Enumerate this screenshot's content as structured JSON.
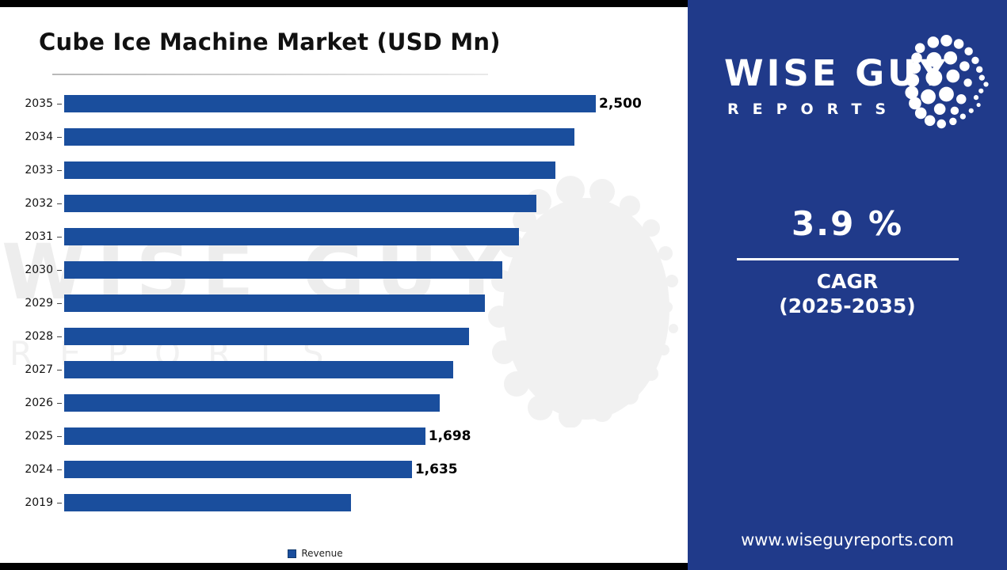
{
  "title": "Cube Ice Machine Market (USD Mn)",
  "watermark": {
    "line1": "WISE GUY",
    "line2": "REPORTS"
  },
  "legend": {
    "label": "Revenue"
  },
  "panel": {
    "logo_line1": "WISE GUY",
    "logo_line2": "REPORTS",
    "cagr_value": "3.9 %",
    "cagr_title": "CAGR",
    "cagr_range": "(2025-2035)",
    "website": "www.wiseguyreports.com",
    "bg_color": "#203a8a"
  },
  "chart_data": {
    "type": "bar",
    "orientation": "horizontal",
    "title": "Cube Ice Machine Market (USD Mn)",
    "xlabel": "",
    "ylabel": "",
    "xlim": [
      0,
      2500
    ],
    "grid": false,
    "legend_position": "bottom",
    "bar_color": "#1a4e9d",
    "categories": [
      "2035",
      "2034",
      "2033",
      "2032",
      "2031",
      "2030",
      "2029",
      "2028",
      "2027",
      "2026",
      "2025",
      "2024",
      "2019"
    ],
    "values": [
      2500,
      2400,
      2310,
      2220,
      2140,
      2060,
      1980,
      1905,
      1830,
      1765,
      1698,
      1635,
      1350
    ],
    "value_labels": [
      "2,500",
      "",
      "",
      "",
      "",
      "",
      "",
      "",
      "",
      "",
      "1,698",
      "1,635",
      ""
    ],
    "series": [
      {
        "name": "Revenue",
        "values": [
          2500,
          2400,
          2310,
          2220,
          2140,
          2060,
          1980,
          1905,
          1830,
          1765,
          1698,
          1635,
          1350
        ]
      }
    ],
    "legend": [
      {
        "label": "Revenue",
        "color": "#1a4e9d"
      }
    ]
  }
}
